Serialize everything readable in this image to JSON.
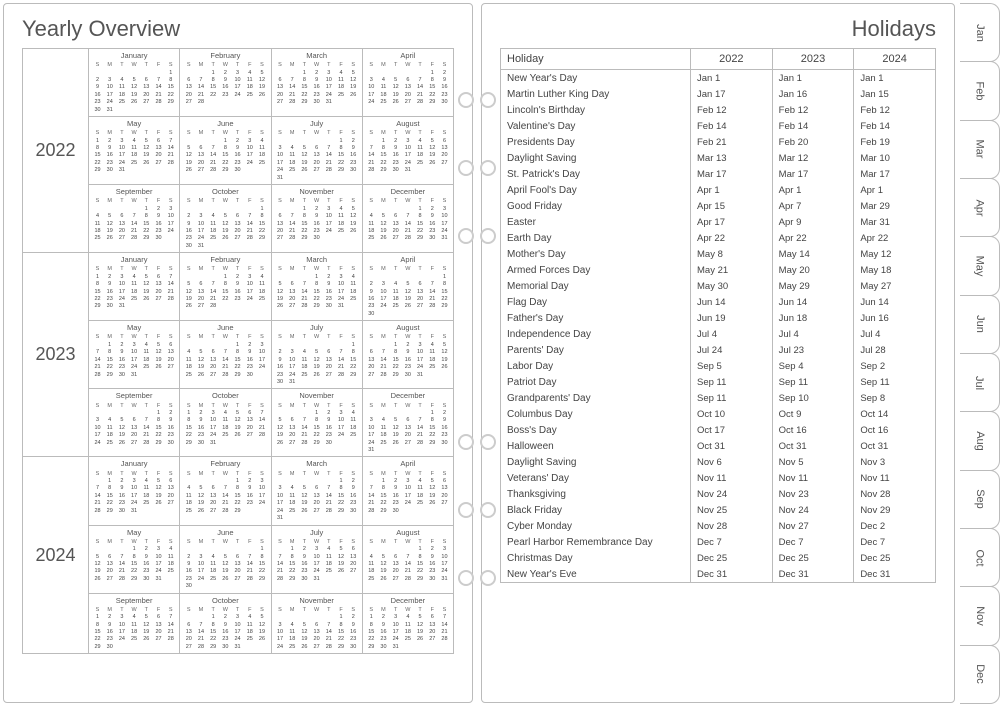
{
  "colors": {
    "border": "#bbbbbb",
    "text": "#444444",
    "title": "#555555"
  },
  "left": {
    "title": "Yearly Overview",
    "dow": [
      "S",
      "M",
      "T",
      "W",
      "T",
      "F",
      "S"
    ],
    "monthNames": [
      "January",
      "February",
      "March",
      "April",
      "May",
      "June",
      "July",
      "August",
      "September",
      "October",
      "November",
      "December"
    ],
    "years": [
      {
        "label": "2022",
        "startDow": [
          6,
          2,
          2,
          5,
          0,
          3,
          5,
          1,
          4,
          6,
          2,
          4
        ],
        "days": [
          31,
          28,
          31,
          30,
          31,
          30,
          31,
          31,
          30,
          31,
          30,
          31
        ]
      },
      {
        "label": "2023",
        "startDow": [
          0,
          3,
          3,
          6,
          1,
          4,
          6,
          2,
          5,
          0,
          3,
          5
        ],
        "days": [
          31,
          28,
          31,
          30,
          31,
          30,
          31,
          31,
          30,
          31,
          30,
          31
        ]
      },
      {
        "label": "2024",
        "startDow": [
          1,
          4,
          5,
          1,
          3,
          6,
          1,
          4,
          0,
          2,
          5,
          0
        ],
        "days": [
          31,
          29,
          31,
          30,
          31,
          30,
          31,
          31,
          30,
          31,
          30,
          31
        ]
      }
    ]
  },
  "right": {
    "title": "Holidays",
    "columns": [
      "Holiday",
      "2022",
      "2023",
      "2024"
    ],
    "rows": [
      [
        "New Year's Day",
        "Jan 1",
        "Jan 1",
        "Jan 1"
      ],
      [
        "Martin Luther King Day",
        "Jan 17",
        "Jan 16",
        "Jan 15"
      ],
      [
        "Lincoln's Birthday",
        "Feb 12",
        "Feb 12",
        "Feb 12"
      ],
      [
        "Valentine's Day",
        "Feb 14",
        "Feb 14",
        "Feb 14"
      ],
      [
        "Presidents Day",
        "Feb 21",
        "Feb 20",
        "Feb 19"
      ],
      [
        "Daylight Saving",
        "Mar 13",
        "Mar 12",
        "Mar 10"
      ],
      [
        "St. Patrick's Day",
        "Mar 17",
        "Mar 17",
        "Mar 17"
      ],
      [
        "April Fool's Day",
        "Apr 1",
        "Apr 1",
        "Apr 1"
      ],
      [
        "Good Friday",
        "Apr 15",
        "Apr 7",
        "Mar 29"
      ],
      [
        "Easter",
        "Apr 17",
        "Apr 9",
        "Mar 31"
      ],
      [
        "Earth Day",
        "Apr 22",
        "Apr 22",
        "Apr 22"
      ],
      [
        "Mother's Day",
        "May 8",
        "May 14",
        "May 12"
      ],
      [
        "Armed Forces Day",
        "May 21",
        "May 20",
        "May 18"
      ],
      [
        "Memorial Day",
        "May 30",
        "May 29",
        "May 27"
      ],
      [
        "Flag Day",
        "Jun 14",
        "Jun 14",
        "Jun 14"
      ],
      [
        "Father's Day",
        "Jun 19",
        "Jun 18",
        "Jun 16"
      ],
      [
        "Independence Day",
        "Jul 4",
        "Jul 4",
        "Jul 4"
      ],
      [
        "Parents' Day",
        "Jul 24",
        "Jul 23",
        "Jul 28"
      ],
      [
        "Labor Day",
        "Sep 5",
        "Sep 4",
        "Sep 2"
      ],
      [
        "Patriot Day",
        "Sep 11",
        "Sep 11",
        "Sep 11"
      ],
      [
        "Grandparents' Day",
        "Sep 11",
        "Sep 10",
        "Sep 8"
      ],
      [
        "Columbus Day",
        "Oct 10",
        "Oct 9",
        "Oct 14"
      ],
      [
        "Boss's Day",
        "Oct 17",
        "Oct 16",
        "Oct 16"
      ],
      [
        "Halloween",
        "Oct 31",
        "Oct 31",
        "Oct 31"
      ],
      [
        "Daylight Saving",
        "Nov 6",
        "Nov 5",
        "Nov 3"
      ],
      [
        "Veterans' Day",
        "Nov 11",
        "Nov 11",
        "Nov 11"
      ],
      [
        "Thanksgiving",
        "Nov 24",
        "Nov 23",
        "Nov 28"
      ],
      [
        "Black Friday",
        "Nov 25",
        "Nov 24",
        "Nov 29"
      ],
      [
        "Cyber Monday",
        "Nov 28",
        "Nov 27",
        "Dec 2"
      ],
      [
        "Pearl Harbor Remembrance Day",
        "Dec 7",
        "Dec 7",
        "Dec 7"
      ],
      [
        "Christmas Day",
        "Dec 25",
        "Dec 25",
        "Dec 25"
      ],
      [
        "New Year's Eve",
        "Dec 31",
        "Dec 31",
        "Dec 31"
      ]
    ]
  },
  "tabs": [
    "Jan",
    "Feb",
    "Mar",
    "Apr",
    "May",
    "Jun",
    "Jul",
    "Aug",
    "Sep",
    "Oct",
    "Nov",
    "Dec"
  ],
  "holePositions": [
    88,
    156,
    224,
    430,
    498,
    566
  ]
}
